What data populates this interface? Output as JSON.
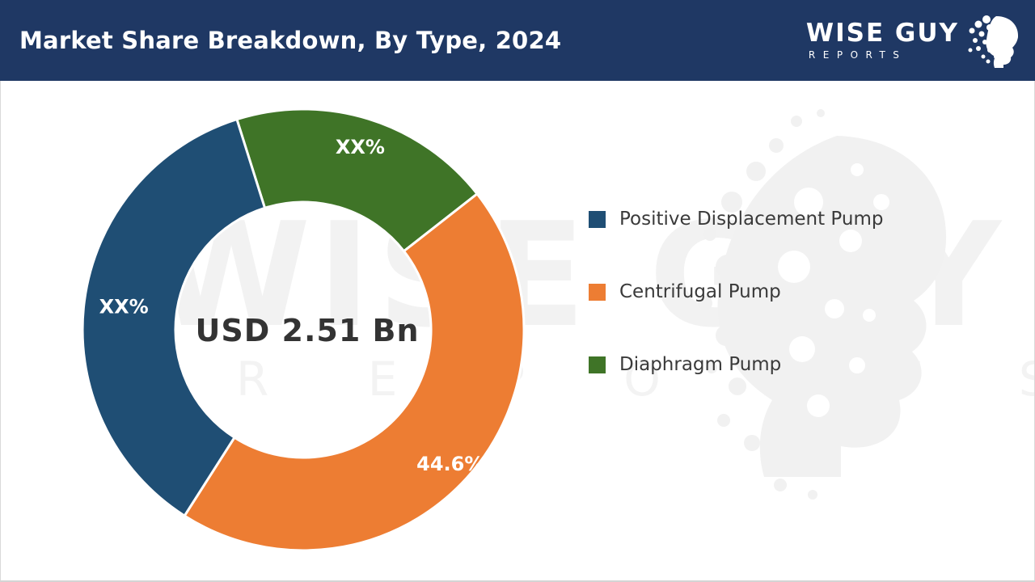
{
  "header": {
    "title": "Market Share Breakdown, By Type, 2024",
    "bg_color": "#1f3864",
    "logo": {
      "line1": "WISE GUY",
      "line2": "REPORTS"
    }
  },
  "chart_data": {
    "type": "pie",
    "subtype": "donut",
    "title": "Market Share Breakdown, By Type, 2024",
    "center_label": "USD 2.51 Bn",
    "start_angle_deg": -17.5,
    "legend_position": "right",
    "segments": [
      {
        "id": "diaphragm-pump",
        "name": "Diaphragm Pump",
        "value_pct": 19.3,
        "display_label": "XX%",
        "color": "#3f7427",
        "label_dist": 0.87
      },
      {
        "id": "centrifugal-pump",
        "name": "Centrifugal Pump",
        "value_pct": 44.6,
        "display_label": "44.6%",
        "color": "#ed7d33",
        "label_dist": 0.9
      },
      {
        "id": "positive-displacement-pump",
        "name": "Positive Displacement Pump",
        "value_pct": 36.1,
        "display_label": "XX%",
        "color": "#1f4e74",
        "label_dist": 0.82
      }
    ]
  },
  "legend": {
    "items": [
      {
        "label": "Positive Displacement Pump",
        "color": "#1f4e74"
      },
      {
        "label": "Centrifugal Pump",
        "color": "#ed7d33"
      },
      {
        "label": "Diaphragm Pump",
        "color": "#3f7427"
      }
    ]
  },
  "watermark": {
    "line1": "WISE GUY",
    "line2": "R E P O R T S"
  },
  "colors": {
    "header_bg": "#1f3864",
    "border": "#d9d9d9",
    "center_text": "#333333",
    "legend_text": "#3a3a3a",
    "watermark": "#f2f2f2"
  }
}
